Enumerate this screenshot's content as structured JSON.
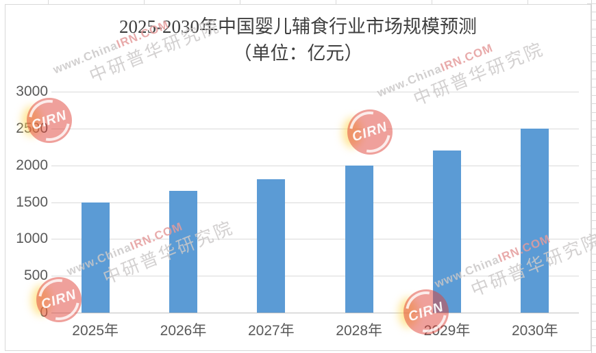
{
  "title": {
    "line1": "2025-2030年中国婴儿辅食行业市场规模预测",
    "line2": "（单位：亿元）"
  },
  "chart_data": {
    "type": "bar",
    "title": "2025-2030年中国婴儿辅食行业市场规模预测（单位：亿元）",
    "unit": "亿元",
    "categories": [
      "2025年",
      "2026年",
      "2027年",
      "2028年",
      "2029年",
      "2030年"
    ],
    "values": [
      1500,
      1650,
      1810,
      2000,
      2200,
      2500
    ],
    "ylim": [
      0,
      3000
    ],
    "ytick_interval": 500,
    "ytick_labels": [
      "0",
      "500",
      "1000",
      "1500",
      "2000",
      "2500",
      "3000"
    ],
    "grid": true,
    "legend": "none",
    "bar_color": "#5B9BD5"
  },
  "watermark": {
    "url_gray": "www.China",
    "url_pink": "IRN.COM",
    "cn_text": "中研普华研究院",
    "logo_text": "CIRN"
  },
  "colors": {
    "bar": "#5B9BD5",
    "gridline": "#D9D9D9",
    "axis_line": "#BFBFBF",
    "title_text": "#3F3F3F",
    "tick_text": "#595959",
    "watermark_gray": "#C9C7C7",
    "watermark_pink": "#E59C9C",
    "logo_red": "#DF4237"
  }
}
